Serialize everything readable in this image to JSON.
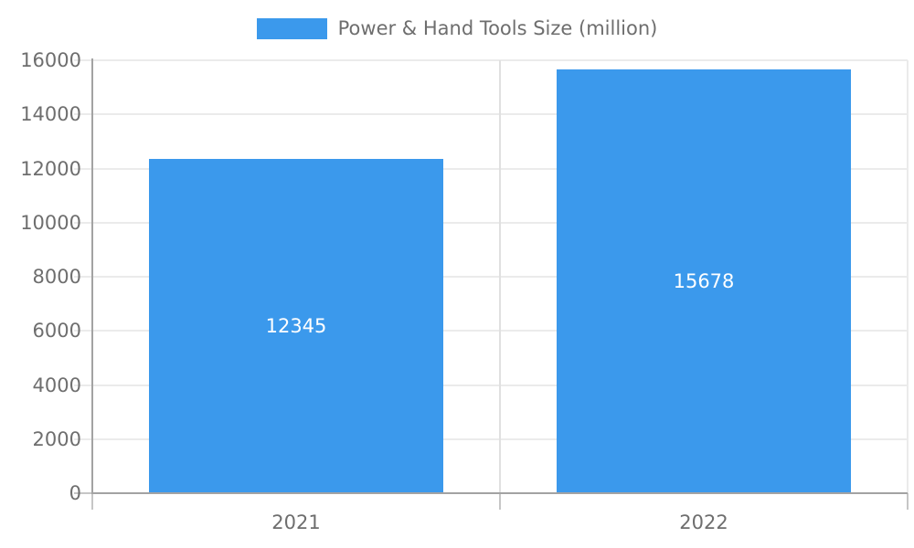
{
  "chart_data": {
    "type": "bar",
    "title": "Power & Hand Tools Size (million)",
    "categories": [
      "2021",
      "2022"
    ],
    "series": [
      {
        "name": "Power & Hand Tools Size (million)",
        "values": [
          12345,
          15678
        ]
      }
    ],
    "values": [
      12345,
      15678
    ],
    "data_labels": [
      "12345",
      "15678"
    ],
    "xlabel": "",
    "ylabel": "",
    "ylim": [
      0,
      16000
    ],
    "yticks": [
      0,
      2000,
      4000,
      6000,
      8000,
      10000,
      12000,
      14000,
      16000
    ],
    "grid": true,
    "legend_position": "top",
    "colors": {
      "bar": "#3b99ec",
      "text": "#6e6e6e",
      "gridline": "#ebebeb",
      "separator": "#e0e0e0",
      "axis_line": "#a3a3a3",
      "tick": "#c6c6c6",
      "data_label": "#ffffff",
      "background": "#ffffff"
    }
  }
}
